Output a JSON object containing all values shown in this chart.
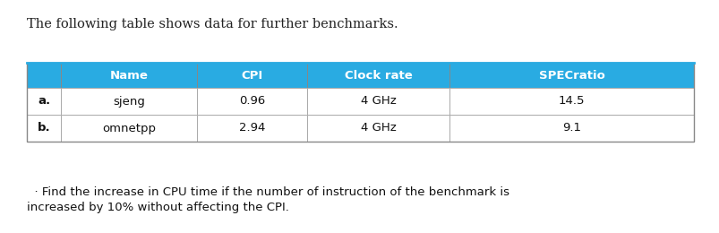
{
  "title": "The following table shows data for further benchmarks.",
  "footer_line1": "  · Find the increase in CPU time if the number of instruction of the benchmark is",
  "footer_line2": "increased by 10% without affecting the CPI.",
  "header_bg": "#29ABE2",
  "header_text_color": "#FFFFFF",
  "header_cols": [
    "Name",
    "CPI",
    "Clock rate",
    "SPECratio"
  ],
  "row_labels": [
    "a.",
    "b."
  ],
  "rows": [
    [
      "sjeng",
      "0.96",
      "4 GHz",
      "14.5"
    ],
    [
      "omnetpp",
      "2.94",
      "4 GHz",
      "9.1"
    ]
  ],
  "title_fontsize": 10.5,
  "header_fontsize": 9.5,
  "cell_fontsize": 9.5,
  "footer_fontsize": 9.5,
  "background_color": "#FFFFFF"
}
